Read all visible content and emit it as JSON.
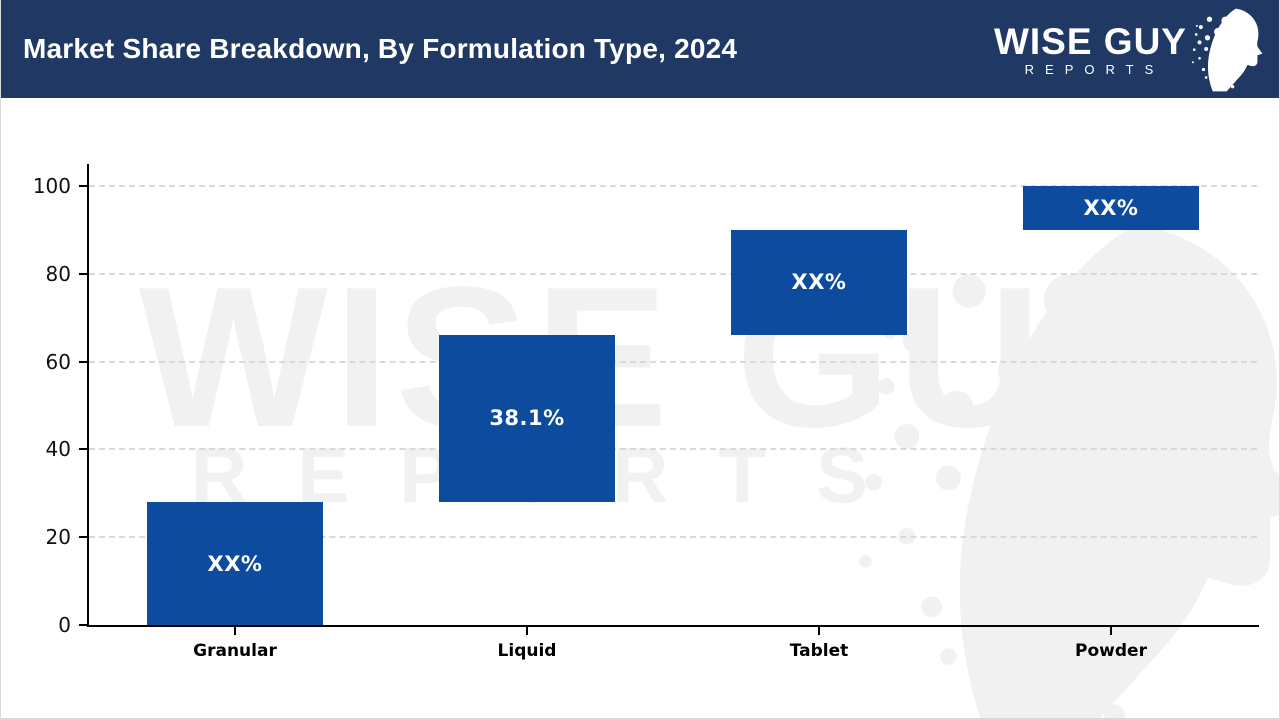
{
  "header": {
    "title": "Market Share Breakdown, By Formulation Type, 2024",
    "logo": {
      "line1": "WISE GUY",
      "line2": "REPORTS"
    }
  },
  "watermark": {
    "line1": "WISE GUY",
    "line2": "REPORTS"
  },
  "colors": {
    "header_bg": "#1f3864",
    "bar": "#0c4b9e",
    "grid": "#d9d9d9",
    "axis": "#000000",
    "bar_label_text": "#ffffff",
    "tick_text": "#111111",
    "watermark": "#f1f1f1"
  },
  "chart_data": {
    "type": "bar",
    "variant": "waterfall-floating-bars",
    "title": "Market Share Breakdown, By Formulation Type, 2024",
    "categories": [
      "Granular",
      "Liquid",
      "Tablet",
      "Powder"
    ],
    "segments": [
      {
        "category": "Granular",
        "start": 0,
        "end": 28,
        "label": "XX%"
      },
      {
        "category": "Liquid",
        "start": 28,
        "end": 66.1,
        "label": "38.1%"
      },
      {
        "category": "Tablet",
        "start": 66.1,
        "end": 90,
        "label": "XX%"
      },
      {
        "category": "Powder",
        "start": 90,
        "end": 100,
        "label": "XX%"
      }
    ],
    "xlabel": "",
    "ylabel": "",
    "ylim": [
      0,
      100
    ],
    "yticks": [
      0,
      20,
      40,
      60,
      80,
      100
    ],
    "grid": "horizontal-dashed",
    "legend": "none"
  }
}
